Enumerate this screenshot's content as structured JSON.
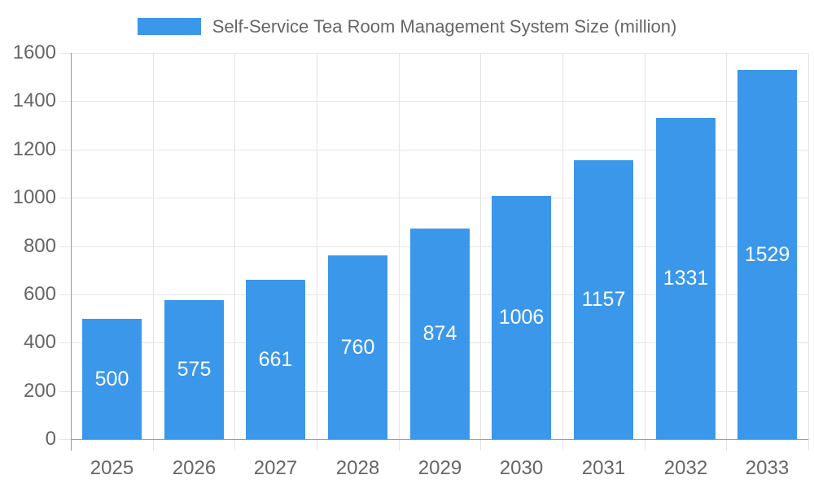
{
  "legend": {
    "label": "Self-Service Tea Room Management System Size (million)"
  },
  "colors": {
    "bar": "#3B97EA",
    "grid": "#E4E4E4",
    "axis": "#9A9A9A",
    "text": "#666666",
    "bar_label": "#FFFFFF"
  },
  "chart_data": {
    "type": "bar",
    "title": "Self-Service Tea Room Management System Size (million)",
    "categories": [
      "2025",
      "2026",
      "2027",
      "2028",
      "2029",
      "2030",
      "2031",
      "2032",
      "2033"
    ],
    "values": [
      500,
      575,
      661,
      760,
      874,
      1006,
      1157,
      1331,
      1529
    ],
    "xlabel": "",
    "ylabel": "",
    "ylim": [
      0,
      1600
    ],
    "ytick_step": 200,
    "ytick_labels": [
      "0",
      "200",
      "400",
      "600",
      "800",
      "1000",
      "1200",
      "1400",
      "1600"
    ],
    "grid": true,
    "legend_position": "top",
    "value_labels": "inside-center"
  }
}
